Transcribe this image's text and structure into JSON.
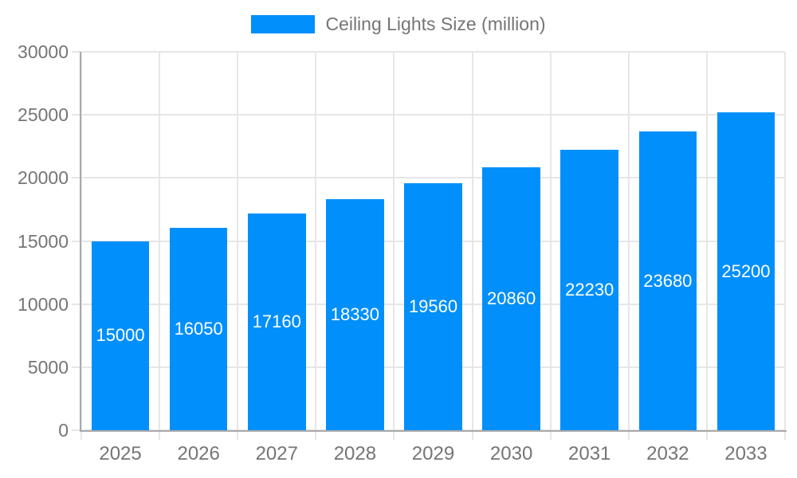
{
  "legend": {
    "label": "Ceiling Lights Size (million)"
  },
  "colors": {
    "bar": "#008FFB",
    "axis_line": "#aaaaaa",
    "grid_line": "#e6e6e6",
    "text": "#757575",
    "value_label": "#ffffff"
  },
  "chart_data": {
    "type": "bar",
    "title": "Ceiling Lights Size (million)",
    "series_name": "Ceiling Lights Size (million)",
    "categories": [
      "2025",
      "2026",
      "2027",
      "2028",
      "2029",
      "2030",
      "2031",
      "2032",
      "2033"
    ],
    "values": [
      15000,
      16050,
      17160,
      18330,
      19560,
      20860,
      22230,
      23680,
      25200
    ],
    "xlabel": "",
    "ylabel": "",
    "ylim": [
      0,
      30000
    ],
    "yticks": [
      0,
      5000,
      10000,
      15000,
      20000,
      25000,
      30000
    ],
    "grid": true,
    "legend_position": "top",
    "value_labels": "inside-center"
  }
}
